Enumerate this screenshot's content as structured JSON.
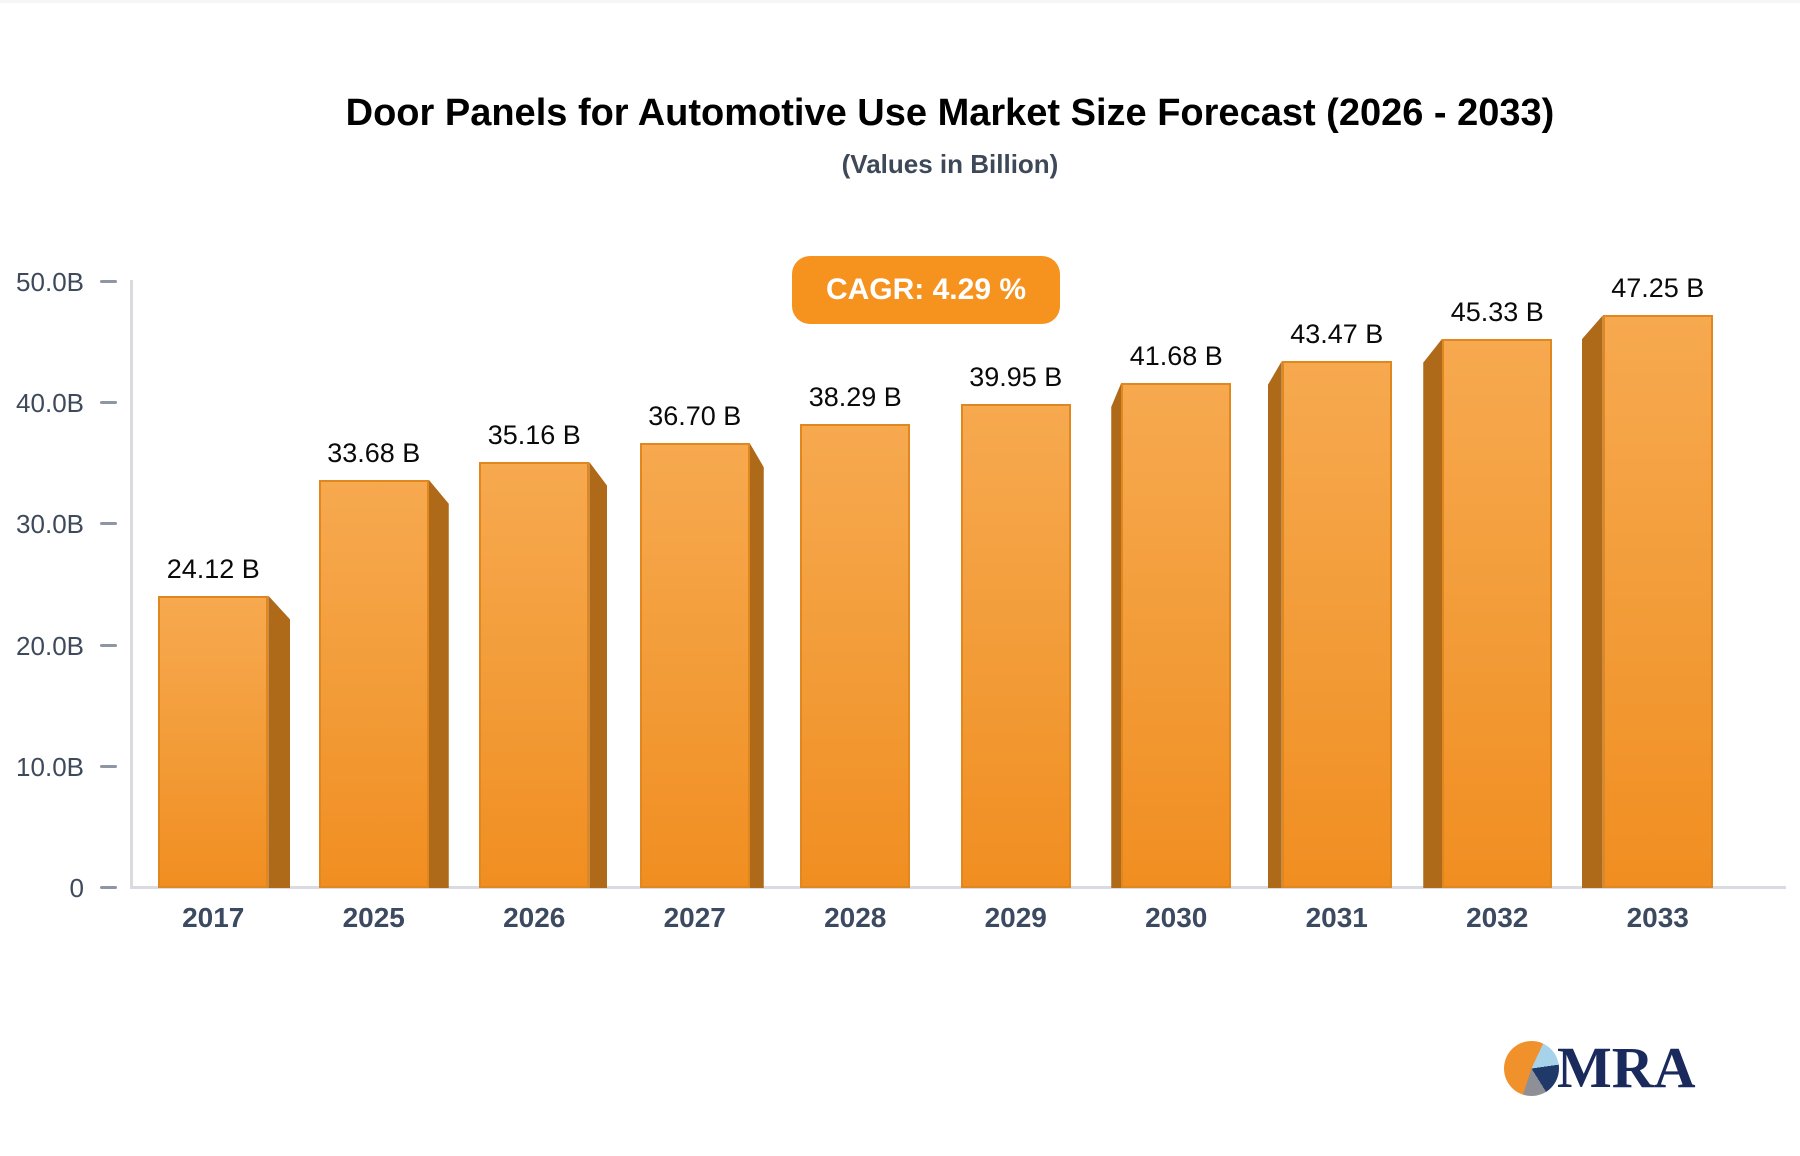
{
  "page": {
    "title": "Door Panels for Automotive Use Market Size Forecast (2026 - 2033)",
    "subtitle": "(Values in Billion)",
    "cagr_badge": "CAGR: 4.29 %"
  },
  "chart_data": {
    "type": "bar",
    "title": "Door Panels for Automotive Use Market Size Forecast (2026 - 2033)",
    "subtitle": "(Values in Billion)",
    "unit": "Billion",
    "cagr_label": "CAGR: 4.29 %",
    "categories": [
      "2017",
      "2025",
      "2026",
      "2027",
      "2028",
      "2029",
      "2030",
      "2031",
      "2032",
      "2033"
    ],
    "values": [
      24.12,
      33.68,
      35.16,
      36.7,
      38.29,
      39.95,
      41.68,
      43.47,
      45.33,
      47.25
    ],
    "bar_labels": [
      "24.12 B",
      "33.68 B",
      "35.16 B",
      "36.70 B",
      "38.29 B",
      "39.95 B",
      "41.68 B",
      "43.47 B",
      "45.33 B",
      "47.25 B"
    ],
    "xlabel": "",
    "ylabel": "",
    "ylim": [
      0,
      50
    ],
    "yticks": [
      {
        "value": 0,
        "label": "0"
      },
      {
        "value": 10,
        "label": "10.0B"
      },
      {
        "value": 20,
        "label": "20.0B"
      },
      {
        "value": 30,
        "label": "30.0B"
      },
      {
        "value": 40,
        "label": "40.0B"
      },
      {
        "value": 50,
        "label": "50.0B"
      }
    ],
    "grid": false,
    "legend": false,
    "bar_color_top": "#f7a94f",
    "bar_color_bottom": "#f18e21",
    "bar_border_color": "#e0871f",
    "bar_side_color": "#ae6919",
    "axis_color": "#d9dbe0",
    "tick_text_color": "#3e4a5c",
    "badge_color": "#f6921e"
  },
  "logo": {
    "text": "MRA",
    "pie_colors": [
      "#f0912b",
      "#a6d2ea",
      "#1f3a68",
      "#8f8f97"
    ]
  }
}
